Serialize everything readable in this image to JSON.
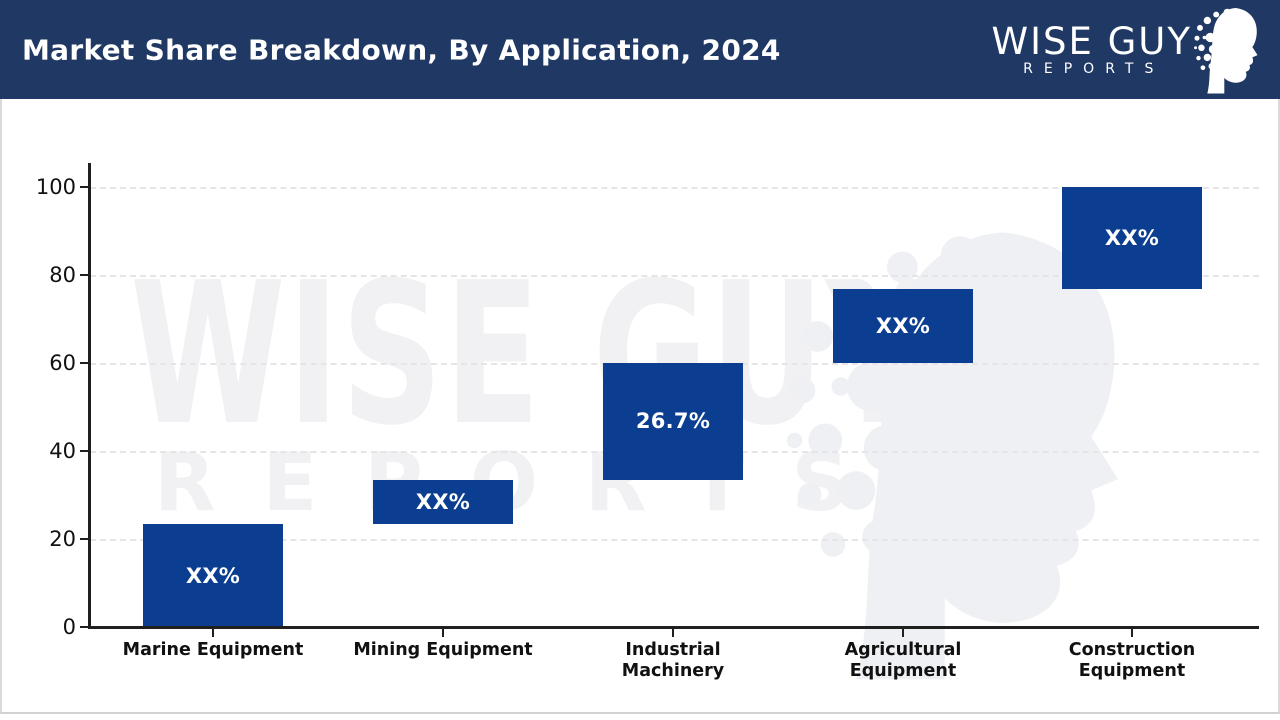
{
  "header": {
    "title": "Market Share Breakdown, By Application, 2024",
    "brand": {
      "line1": "WISE GUY",
      "line2": "REPORTS"
    }
  },
  "watermark": {
    "line1": "WISE GUY",
    "line2": "REPORTS"
  },
  "colors": {
    "header_bg": "#1f3864",
    "bar": "#0b3d90",
    "axis": "#202020",
    "grid": "#e5e5e7",
    "watermark": "#f1f1f4",
    "bar_label": "#ffffff"
  },
  "chart_data": {
    "type": "bar",
    "subtype": "waterfall",
    "title": "Market Share Breakdown, By Application, 2024",
    "xlabel": "",
    "ylabel": "",
    "categories": [
      "Marine Equipment",
      "Mining Equipment",
      "Industrial Machinery",
      "Agricultural Equipment",
      "Construction Equipment"
    ],
    "values": [
      23.4,
      10.0,
      26.7,
      16.7,
      23.2
    ],
    "segments": [
      {
        "category": "Marine Equipment",
        "start": 0,
        "end": 23.4,
        "label": "XX%",
        "tick_label_lines": [
          "Marine Equipment"
        ]
      },
      {
        "category": "Mining Equipment",
        "start": 23.4,
        "end": 33.4,
        "label": "XX%",
        "tick_label_lines": [
          "Mining Equipment"
        ]
      },
      {
        "category": "Industrial Machinery",
        "start": 33.4,
        "end": 60.1,
        "label": "26.7%",
        "tick_label_lines": [
          "Industrial",
          "Machinery"
        ]
      },
      {
        "category": "Agricultural Equipment",
        "start": 60.1,
        "end": 76.8,
        "label": "XX%",
        "tick_label_lines": [
          "Agricultural",
          "Equipment"
        ]
      },
      {
        "category": "Construction Equipment",
        "start": 76.8,
        "end": 100,
        "label": "XX%",
        "tick_label_lines": [
          "Construction",
          "Equipment"
        ]
      }
    ],
    "yticks": [
      0,
      20,
      40,
      60,
      80,
      100
    ],
    "ylim": [
      0,
      105
    ],
    "grid": "dashed-horizontal",
    "legend": "none",
    "bar_color": "#0b3d90",
    "value_label_color": "#ffffff"
  }
}
